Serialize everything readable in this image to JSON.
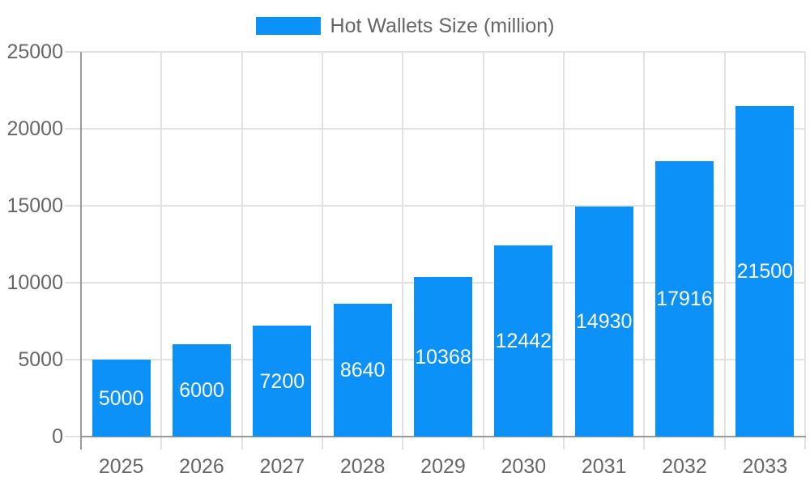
{
  "chart_data": {
    "type": "bar",
    "title": "Hot Wallets Size (million)",
    "legend": [
      "Hot Wallets Size (million)"
    ],
    "legend_position": "top",
    "categories": [
      "2025",
      "2026",
      "2027",
      "2028",
      "2029",
      "2030",
      "2031",
      "2032",
      "2033"
    ],
    "series": [
      {
        "name": "Hot Wallets Size (million)",
        "values": [
          5000,
          6000,
          7200,
          8640,
          10368,
          12442,
          14930,
          17916,
          21500
        ]
      }
    ],
    "bar_labels": [
      "5000",
      "6000",
      "7200",
      "8640",
      "10368",
      "12442",
      "14930",
      "17916",
      "21500"
    ],
    "xlabel": "",
    "ylabel": "",
    "ylim": [
      0,
      25000
    ],
    "y_ticks": [
      0,
      5000,
      10000,
      15000,
      20000,
      25000
    ],
    "grid": true,
    "colors": {
      "bar": "#0b91f8",
      "bar_label_text": "#ffffff",
      "axis_text": "#666666",
      "axis_line": "#9a9a9a",
      "gridline": "#e2e2e2"
    }
  }
}
